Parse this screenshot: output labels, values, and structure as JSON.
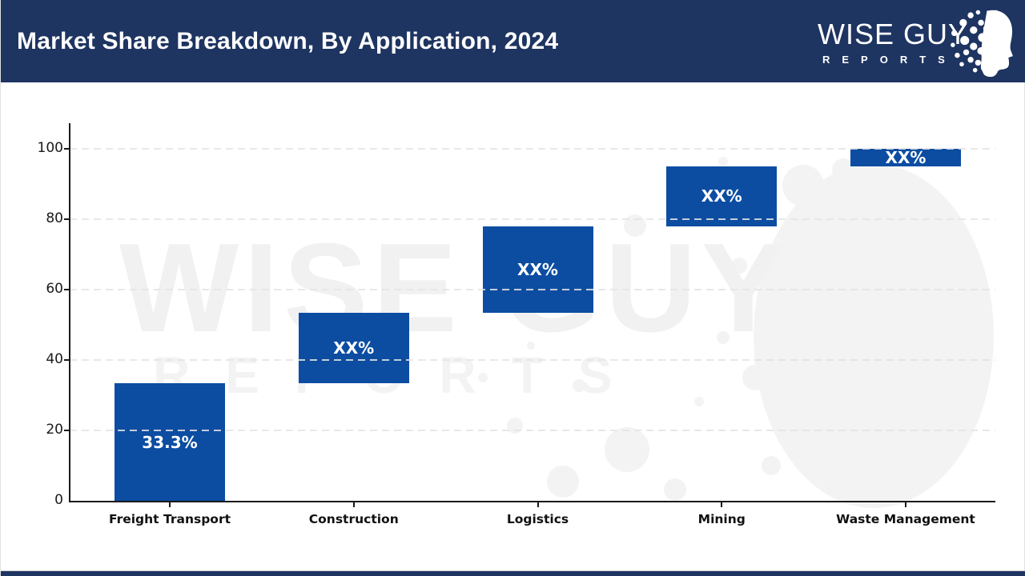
{
  "header": {
    "title": "Market Share Breakdown, By Application, 2024",
    "logo": {
      "line1": "WISE GUY",
      "line2": "REPORTS"
    }
  },
  "watermark": {
    "line1": "WISE GUY",
    "line2": "REPORTS"
  },
  "chart_data": {
    "type": "bar",
    "subtype": "floating-segment-waterfall",
    "title": "Market Share Breakdown, By Application, 2024",
    "categories": [
      "Freight Transport",
      "Construction",
      "Logistics",
      "Mining",
      "Waste Management"
    ],
    "bars": [
      {
        "category": "Freight Transport",
        "from": 0,
        "to": 33.3,
        "label": "33.3%"
      },
      {
        "category": "Construction",
        "from": 33.3,
        "to": 53.3,
        "label": "XX%"
      },
      {
        "category": "Logistics",
        "from": 53.3,
        "to": 78,
        "label": "XX%"
      },
      {
        "category": "Mining",
        "from": 78,
        "to": 95,
        "label": "XX%"
      },
      {
        "category": "Waste Management",
        "from": 95,
        "to": 100,
        "label": "XX%"
      }
    ],
    "segment_values_pct": [
      33.3,
      20,
      24.7,
      17,
      5
    ],
    "xlabel": "",
    "ylabel": "",
    "yticks": [
      0,
      20,
      40,
      60,
      80,
      100
    ],
    "ylim": [
      0,
      105
    ],
    "grid": "horizontal-dashed",
    "legend": "none",
    "colors": {
      "bar": "#0c4da2",
      "bar_label": "#ffffff",
      "axis": "#1a1a1a",
      "gridline": "#e0e0e0",
      "tick_label": "#1a1a1a",
      "category_label": "#111111"
    }
  },
  "colors": {
    "header_bg": "#1e3461",
    "footer_bg": "#1e3461",
    "page_bg": "#ffffff",
    "watermark": "#f1f1f1"
  }
}
